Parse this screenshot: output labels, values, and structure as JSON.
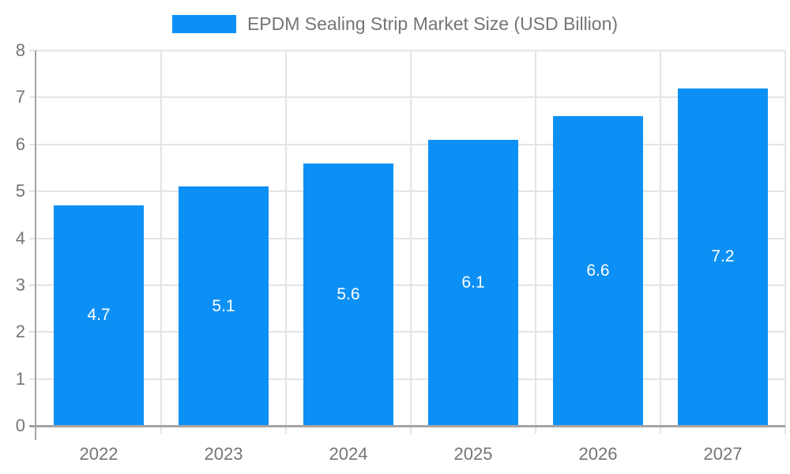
{
  "legend": {
    "label": "EPDM Sealing Strip Market Size (USD Billion)"
  },
  "chart_data": {
    "type": "bar",
    "title": "EPDM Sealing Strip Market Size (USD Billion)",
    "series_name": "EPDM Sealing Strip Market Size (USD Billion)",
    "categories": [
      "2022",
      "2023",
      "2024",
      "2025",
      "2026",
      "2027"
    ],
    "values": [
      4.7,
      5.1,
      5.6,
      6.1,
      6.6,
      7.2
    ],
    "data_labels": [
      "4.7",
      "5.1",
      "5.6",
      "6.1",
      "6.6",
      "7.2"
    ],
    "xlabel": "",
    "ylabel": "",
    "ylim": [
      0,
      8
    ],
    "yticks": [
      0,
      1,
      2,
      3,
      4,
      5,
      6,
      7,
      8
    ],
    "grid": true,
    "legend_position": "top-center",
    "data_label_position": "inside-center",
    "colors": {
      "bar": "#0d90f5",
      "axis_label": "#757575",
      "legend_label": "#757575",
      "gridline": "#e4e4e4",
      "axis_line": "#a4a4a4",
      "data_label": "#ffffff",
      "background": "#ffffff"
    }
  }
}
